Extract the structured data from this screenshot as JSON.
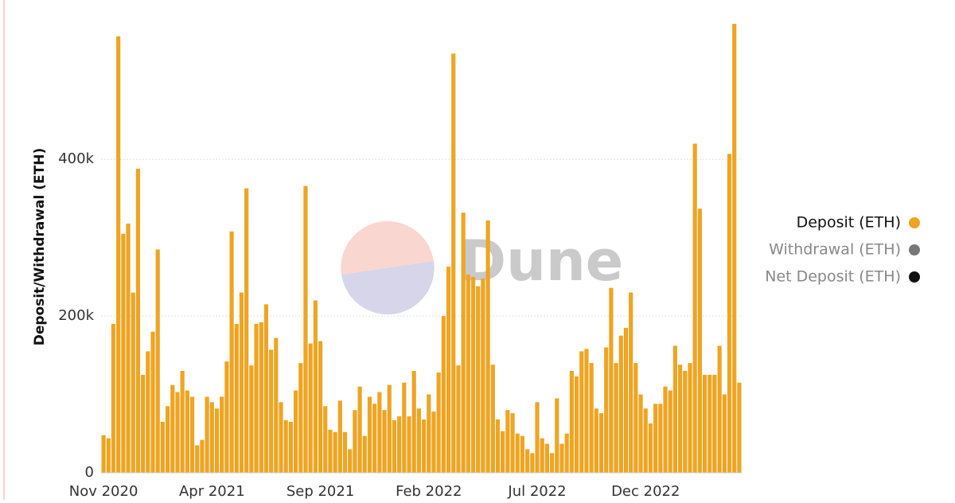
{
  "chart_data": {
    "type": "bar",
    "y_label": "Deposit/Withdrawal (ETH)",
    "watermark": "Dune",
    "categories": [
      "Nov 2020",
      null,
      null,
      null,
      null,
      null,
      null,
      null,
      null,
      null,
      null,
      null,
      null,
      null,
      null,
      null,
      null,
      null,
      null,
      null,
      null,
      null,
      "Apr 2021",
      null,
      null,
      null,
      null,
      null,
      null,
      null,
      null,
      null,
      null,
      null,
      null,
      null,
      null,
      null,
      null,
      null,
      null,
      null,
      null,
      null,
      "Sep 2021",
      null,
      null,
      null,
      null,
      null,
      null,
      null,
      null,
      null,
      null,
      null,
      null,
      null,
      null,
      null,
      null,
      null,
      null,
      null,
      null,
      null,
      "Feb 2022",
      null,
      null,
      null,
      null,
      null,
      null,
      null,
      null,
      null,
      null,
      null,
      null,
      null,
      null,
      null,
      null,
      null,
      null,
      null,
      null,
      null,
      "Jul 2022",
      null,
      null,
      null,
      null,
      null,
      null,
      null,
      null,
      null,
      null,
      null,
      null,
      null,
      null,
      null,
      null,
      null,
      null,
      null,
      null,
      null,
      "Dec 2022",
      null,
      null,
      null,
      null,
      null,
      null,
      null,
      null,
      null,
      null,
      null,
      null,
      null,
      null,
      null,
      null,
      null,
      null,
      null
    ],
    "series": [
      {
        "name": "Deposit (ETH)",
        "color": "#eea522",
        "values": [
          48000,
          44000,
          190000,
          557000,
          305000,
          318000,
          230000,
          388000,
          125000,
          155000,
          180000,
          285000,
          65000,
          85000,
          112000,
          103000,
          130000,
          105000,
          97000,
          35000,
          42000,
          97000,
          90000,
          82000,
          97000,
          142000,
          308000,
          190000,
          230000,
          363000,
          137000,
          190000,
          192000,
          215000,
          157000,
          172000,
          90000,
          67000,
          65000,
          105000,
          140000,
          366000,
          165000,
          220000,
          168000,
          85000,
          55000,
          52000,
          92000,
          52000,
          30000,
          80000,
          110000,
          47000,
          97000,
          88000,
          103000,
          80000,
          112000,
          67000,
          72000,
          115000,
          72000,
          130000,
          82000,
          68000,
          100000,
          78000,
          128000,
          200000,
          263000,
          535000,
          137000,
          332000,
          253000,
          250000,
          238000,
          248000,
          322000,
          138000,
          68000,
          53000,
          80000,
          76000,
          50000,
          47000,
          30000,
          25000,
          90000,
          44000,
          37000,
          25000,
          95000,
          37000,
          50000,
          130000,
          123000,
          155000,
          158000,
          140000,
          82000,
          76000,
          160000,
          236000,
          140000,
          175000,
          185000,
          230000,
          140000,
          100000,
          82000,
          63000,
          88000,
          88000,
          110000,
          105000,
          162000,
          138000,
          130000,
          140000,
          420000,
          337000,
          125000,
          125000,
          125000,
          162000,
          100000,
          407000,
          573000,
          115000
        ]
      },
      {
        "name": "Withdrawal (ETH)",
        "color": "#777777",
        "hidden": true
      },
      {
        "name": "Net Deposit (ETH)",
        "color": "#111111",
        "hidden": true
      }
    ],
    "ylim": [
      0,
      580000
    ],
    "yticks": [
      0,
      {
        "value": 200000,
        "label": "200k"
      },
      {
        "value": 400000,
        "label": "400k"
      }
    ],
    "grid": true,
    "legend": "right"
  }
}
